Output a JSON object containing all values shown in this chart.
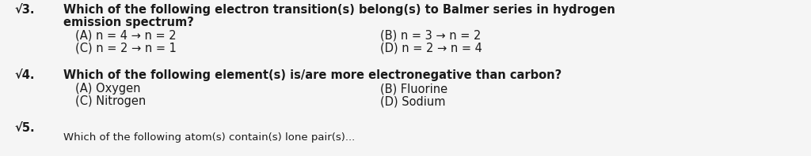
{
  "bg_color": "#f5f5f5",
  "q3_mark": "√3.",
  "q3_line1": "Which of the following electron transition(s) belong(s) to Balmer series in hydrogen",
  "q3_line2": "emission spectrum?",
  "q3_A": "(A) n = 4 → n = 2",
  "q3_B": "(B) n = 3 → n = 2",
  "q3_C": "(C) n = 2 → n = 1",
  "q3_D": "(D) n = 2 → n = 4",
  "q4_mark": "√4.",
  "q4_text": "Which of the following element(s) is/are more electronegative than carbon?",
  "q4_A": "(A) Oxygen",
  "q4_B": "(B) Fluorine",
  "q4_C": "(C) Nitrogen",
  "q4_D": "(D) Sodium",
  "q5_mark": "√5.",
  "text_color": "#1a1a1a",
  "font_size": 10.5,
  "font_family": "DejaVu Sans"
}
